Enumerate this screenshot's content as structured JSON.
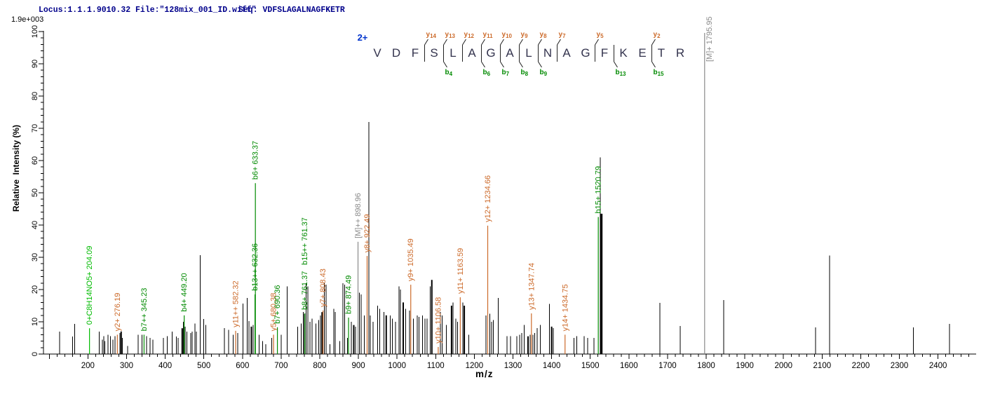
{
  "header": {
    "locus_file": "Locus:1.1.1.9010.32 File:\"128mix_001_ID.wiff\"",
    "seq_label": "Seq:",
    "seq_value": "VDFSLAGALNAGFKETR",
    "max_intensity": "1.9e+003"
  },
  "colors": {
    "y_ion": "#cc6a2a",
    "b_ion": "#008a00",
    "special_ion": "#00bb00",
    "precursor": "#8a8a8a",
    "peak": "#000000",
    "header_text": "#00008b",
    "charge": "#0033cc",
    "sequence": "#33334d",
    "axis": "#000000"
  },
  "chart_data": {
    "type": "bar",
    "subtype": "ms2-peptide-spectrum",
    "title": "",
    "xlabel": "m/z",
    "ylabel": "Relative  Intensity (%)",
    "x_range": [
      85,
      2495
    ],
    "ylim": [
      0,
      100
    ],
    "x_major_tick_step": 100,
    "x_minor_tick_step": 20,
    "x_first_label": 200,
    "x_last_label": 2400,
    "y_major_tick_step": 10,
    "y_minor_tick_step": 2,
    "grid": false,
    "legend_position": "none",
    "sequence": {
      "charge_label": "2+",
      "residues": [
        "V",
        "D",
        "F",
        "S",
        "L",
        "A",
        "G",
        "A",
        "L",
        "N",
        "A",
        "G",
        "F",
        "K",
        "E",
        "T",
        "R"
      ],
      "y_ions": [
        {
          "name": "y",
          "num": "14",
          "after": 3
        },
        {
          "name": "y",
          "num": "13",
          "after": 4
        },
        {
          "name": "y",
          "num": "12",
          "after": 5
        },
        {
          "name": "y",
          "num": "11",
          "after": 6
        },
        {
          "name": "y",
          "num": "10",
          "after": 7
        },
        {
          "name": "y",
          "num": "9",
          "after": 8
        },
        {
          "name": "y",
          "num": "8",
          "after": 9
        },
        {
          "name": "y",
          "num": "7",
          "after": 10
        },
        {
          "name": "y",
          "num": "5",
          "after": 12
        },
        {
          "name": "y",
          "num": "2",
          "after": 15
        }
      ],
      "b_ions": [
        {
          "name": "b",
          "num": "4",
          "after": 4
        },
        {
          "name": "b",
          "num": "6",
          "after": 6
        },
        {
          "name": "b",
          "num": "7",
          "after": 7
        },
        {
          "name": "b",
          "num": "8",
          "after": 8
        },
        {
          "name": "b",
          "num": "9",
          "after": 9
        },
        {
          "name": "b",
          "num": "13",
          "after": 13
        },
        {
          "name": "b",
          "num": "15",
          "after": 15
        }
      ]
    },
    "precursor_line": {
      "mz": 1795.95,
      "label": "[M]+ 1795.95"
    },
    "annotated_peaks": [
      {
        "mz": 204.09,
        "pct": 8,
        "type": "special",
        "label": "0+C8H14NO5+ 204.09"
      },
      {
        "mz": 276.19,
        "pct": 6,
        "type": "y",
        "label": "y2+ 276.19"
      },
      {
        "mz": 345.23,
        "pct": 6,
        "type": "b",
        "label": "b7++ 345.23"
      },
      {
        "mz": 449.2,
        "pct": 12,
        "type": "b",
        "label": "b4+ 449.20"
      },
      {
        "mz": 582.32,
        "pct": 7.2,
        "type": "y",
        "label": "y11++ 582.32"
      },
      {
        "mz": 632.36,
        "pct": 18.5,
        "type": "b",
        "label": "b13++ 632.36"
      },
      {
        "mz": 633.37,
        "pct": 53,
        "type": "b",
        "label": "b6+ 633.37"
      },
      {
        "mz": 680.38,
        "pct": 6,
        "type": "y",
        "label": "y5+ 680.38"
      },
      {
        "mz": 690.36,
        "pct": 8.3,
        "type": "b",
        "label": "b7+ 690.36"
      },
      {
        "mz": 761.37,
        "pct": 12.6,
        "type": "b",
        "label": "b8+ 761.37"
      },
      {
        "mz": 761.37,
        "pct": 12.6,
        "type": "b",
        "label": "b15++ 761.37",
        "label_offset": 64
      },
      {
        "mz": 808.43,
        "pct": 13.5,
        "type": "y",
        "label": "y7+ 808.43"
      },
      {
        "mz": 874.49,
        "pct": 11.3,
        "type": "b",
        "label": "b9+ 874.49"
      },
      {
        "mz": 898.96,
        "pct": 34.8,
        "type": "precursor",
        "label": "[M]++ 898.96"
      },
      {
        "mz": 922.49,
        "pct": 30.4,
        "type": "y",
        "label": "y8+ 922.49"
      },
      {
        "mz": 1035.49,
        "pct": 21.5,
        "type": "y",
        "label": "y9+ 1035.49"
      },
      {
        "mz": 1106.58,
        "pct": 2.2,
        "type": "y",
        "label": "y10+ 1106.58"
      },
      {
        "mz": 1163.59,
        "pct": 17.6,
        "type": "y",
        "label": "y11+ 1163.59"
      },
      {
        "mz": 1234.66,
        "pct": 39.8,
        "type": "y",
        "label": "y12+ 1234.66"
      },
      {
        "mz": 1347.74,
        "pct": 12.6,
        "type": "y",
        "label": "y13+ 1347.74"
      },
      {
        "mz": 1434.75,
        "pct": 6,
        "type": "y",
        "label": "y14+ 1434.75"
      },
      {
        "mz": 1520.79,
        "pct": 42.5,
        "type": "b",
        "label": "b15+ 1520.79"
      }
    ],
    "peaks": [
      [
        127,
        7
      ],
      [
        160,
        5.4
      ],
      [
        166,
        9.3
      ],
      [
        229,
        7
      ],
      [
        237,
        4.5
      ],
      [
        241,
        5.5
      ],
      [
        244,
        4
      ],
      [
        252,
        6
      ],
      [
        258,
        5.5
      ],
      [
        265,
        4.5
      ],
      [
        270,
        5.5
      ],
      [
        283,
        6.5
      ],
      [
        286,
        7,
        2
      ],
      [
        289,
        5
      ],
      [
        303,
        2.5
      ],
      [
        330,
        6
      ],
      [
        340,
        6
      ],
      [
        352,
        5.5
      ],
      [
        361,
        5
      ],
      [
        368,
        4.5
      ],
      [
        395,
        5
      ],
      [
        405,
        5.5
      ],
      [
        418,
        7
      ],
      [
        429,
        5.4
      ],
      [
        433,
        5
      ],
      [
        444,
        8,
        2
      ],
      [
        447,
        10
      ],
      [
        452,
        8.5
      ],
      [
        456,
        7
      ],
      [
        466,
        6.5
      ],
      [
        470,
        7
      ],
      [
        477,
        9.5
      ],
      [
        481,
        7
      ],
      [
        491,
        30.7
      ],
      [
        500,
        10.9
      ],
      [
        505,
        9
      ],
      [
        553,
        8
      ],
      [
        564,
        7.5
      ],
      [
        576,
        6
      ],
      [
        588,
        6.5
      ],
      [
        601,
        15.7
      ],
      [
        612,
        17.4
      ],
      [
        617,
        10.2
      ],
      [
        623,
        8.5,
        2
      ],
      [
        628,
        9
      ],
      [
        643,
        6
      ],
      [
        652,
        4
      ],
      [
        660,
        3
      ],
      [
        676,
        5
      ],
      [
        700,
        6
      ],
      [
        716,
        21
      ],
      [
        743,
        8.5
      ],
      [
        752,
        9.5
      ],
      [
        757,
        13
      ],
      [
        760,
        12.5
      ],
      [
        765,
        22
      ],
      [
        769,
        21
      ],
      [
        775,
        10
      ],
      [
        780,
        11
      ],
      [
        790,
        9.5
      ],
      [
        797,
        10.5
      ],
      [
        802,
        12
      ],
      [
        806,
        13,
        2
      ],
      [
        812,
        22
      ],
      [
        816,
        21.5
      ],
      [
        826,
        3
      ],
      [
        836,
        14
      ],
      [
        840,
        13
      ],
      [
        852,
        4
      ],
      [
        860,
        22
      ],
      [
        864,
        21.5
      ],
      [
        872,
        5
      ],
      [
        882,
        10
      ],
      [
        888,
        9,
        2
      ],
      [
        893,
        8.5
      ],
      [
        903,
        19
      ],
      [
        907,
        18.5
      ],
      [
        915,
        12
      ],
      [
        926.6,
        72
      ],
      [
        931,
        12
      ],
      [
        938,
        10
      ],
      [
        950,
        15
      ],
      [
        955,
        14
      ],
      [
        966,
        13
      ],
      [
        972,
        12,
        2
      ],
      [
        982,
        12
      ],
      [
        988,
        11
      ],
      [
        996,
        10
      ],
      [
        1005,
        21
      ],
      [
        1009,
        20
      ],
      [
        1016,
        16,
        2
      ],
      [
        1022,
        14
      ],
      [
        1032,
        13.5
      ],
      [
        1042,
        11
      ],
      [
        1052,
        12
      ],
      [
        1057,
        11.5
      ],
      [
        1066,
        12
      ],
      [
        1072,
        11
      ],
      [
        1078,
        11
      ],
      [
        1086,
        21
      ],
      [
        1090,
        23,
        2
      ],
      [
        1112,
        13
      ],
      [
        1117,
        12
      ],
      [
        1128,
        9
      ],
      [
        1141,
        15,
        2
      ],
      [
        1145,
        16
      ],
      [
        1152,
        11
      ],
      [
        1157,
        10
      ],
      [
        1170,
        16
      ],
      [
        1174,
        15,
        2
      ],
      [
        1186,
        6
      ],
      [
        1230,
        12
      ],
      [
        1240,
        12.5
      ],
      [
        1245,
        10
      ],
      [
        1249,
        10.5
      ],
      [
        1262,
        17.4
      ],
      [
        1285,
        5.5
      ],
      [
        1294,
        5.5
      ],
      [
        1310,
        5.5
      ],
      [
        1317,
        6
      ],
      [
        1323,
        6.5
      ],
      [
        1329,
        9
      ],
      [
        1339,
        5.5,
        2
      ],
      [
        1344,
        6
      ],
      [
        1352,
        6
      ],
      [
        1356,
        6.5
      ],
      [
        1363,
        8
      ],
      [
        1371,
        9
      ],
      [
        1394,
        15.5
      ],
      [
        1400,
        8.5,
        2
      ],
      [
        1404,
        8
      ],
      [
        1458,
        5
      ],
      [
        1465,
        5.5
      ],
      [
        1484,
        5.5
      ],
      [
        1493,
        5
      ],
      [
        1510,
        5
      ],
      [
        1526,
        61
      ],
      [
        1529,
        43.5,
        3
      ],
      [
        1680,
        15.9
      ],
      [
        1733,
        8.7
      ],
      [
        1845,
        16.7
      ],
      [
        2083,
        8.3
      ],
      [
        2119,
        30.5
      ],
      [
        2336,
        8.3
      ],
      [
        2430,
        9.3
      ]
    ]
  }
}
